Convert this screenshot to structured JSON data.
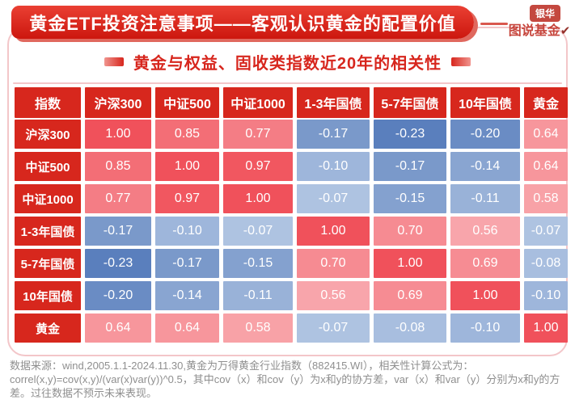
{
  "header": {
    "title": "黄金ETF投资注意事项——客观认识黄金的配置价值"
  },
  "logo": {
    "tag": "银华",
    "name": "图说基金",
    "check": "✔"
  },
  "subtitle": "黄金与权益、固收类指数近20年的相关性",
  "table": {
    "corner_header": "指数",
    "columns": [
      "沪深300",
      "中证500",
      "中证1000",
      "1-3年国债",
      "5-7年国债",
      "10年国债",
      "黄金"
    ],
    "rows": [
      {
        "label": "沪深300",
        "values": [
          1.0,
          0.85,
          0.77,
          -0.17,
          -0.23,
          -0.2,
          0.64
        ]
      },
      {
        "label": "中证500",
        "values": [
          0.85,
          1.0,
          0.97,
          -0.1,
          -0.17,
          -0.14,
          0.64
        ]
      },
      {
        "label": "中证1000",
        "values": [
          0.77,
          0.97,
          1.0,
          -0.07,
          -0.15,
          -0.11,
          0.58
        ]
      },
      {
        "label": "1-3年国债",
        "values": [
          -0.17,
          -0.1,
          -0.07,
          1.0,
          0.7,
          0.56,
          -0.07
        ]
      },
      {
        "label": "5-7年国债",
        "values": [
          -0.23,
          -0.17,
          -0.15,
          0.7,
          1.0,
          0.69,
          -0.08
        ]
      },
      {
        "label": "10年国债",
        "values": [
          -0.2,
          -0.14,
          -0.11,
          0.56,
          0.69,
          1.0,
          -0.1
        ]
      },
      {
        "label": "黄金",
        "values": [
          0.64,
          0.64,
          0.58,
          -0.07,
          -0.08,
          -0.1,
          1.0
        ]
      }
    ]
  },
  "colors": {
    "banner_red": "#d7261d",
    "header_cell_red": "#d7271d",
    "frame_pink": "#f3c6c9",
    "pos_scale_low": "#fbc4c8",
    "pos_scale_high": "#f0515b",
    "neg_scale_low": "#b8cbe6",
    "neg_scale_high": "#5077b8",
    "footer_gray": "#8f8f8f"
  },
  "footer": {
    "text": "数据来源：wind,2005.1.1-2024.11.30,黄金为万得黄金行业指数（882415.WI），相关性计算公式为：correl(x,y)=cov(x,y)/(var(x)var(y))^0.5，其中cov（x）和cov（y）为x和y的协方差，var（x）和var（y）分别为x和y的方差。过往数据不预示未来表现。"
  },
  "chart_data": {
    "type": "heatmap",
    "title": "黄金与权益、固收类指数近20年的相关性",
    "x_categories": [
      "沪深300",
      "中证500",
      "中证1000",
      "1-3年国债",
      "5-7年国债",
      "10年国债",
      "黄金"
    ],
    "y_categories": [
      "沪深300",
      "中证500",
      "中证1000",
      "1-3年国债",
      "5-7年国债",
      "10年国债",
      "黄金"
    ],
    "matrix": [
      [
        1.0,
        0.85,
        0.77,
        -0.17,
        -0.23,
        -0.2,
        0.64
      ],
      [
        0.85,
        1.0,
        0.97,
        -0.1,
        -0.17,
        -0.14,
        0.64
      ],
      [
        0.77,
        0.97,
        1.0,
        -0.07,
        -0.15,
        -0.11,
        0.58
      ],
      [
        -0.17,
        -0.1,
        -0.07,
        1.0,
        0.7,
        0.56,
        -0.07
      ],
      [
        -0.23,
        -0.17,
        -0.15,
        0.7,
        1.0,
        0.69,
        -0.08
      ],
      [
        -0.2,
        -0.14,
        -0.11,
        0.56,
        0.69,
        1.0,
        -0.1
      ],
      [
        0.64,
        0.64,
        0.58,
        -0.07,
        -0.08,
        -0.1,
        1.0
      ]
    ],
    "value_range": [
      -0.23,
      1.0
    ],
    "colormap": "red-positive / blue-negative diverging",
    "grid": false,
    "legend": false
  }
}
